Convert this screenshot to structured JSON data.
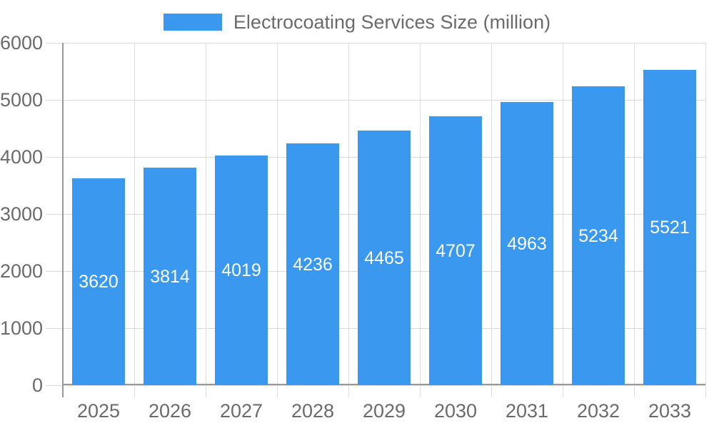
{
  "legend": {
    "label": "Electrocoating Services Size (million)"
  },
  "chart_data": {
    "type": "bar",
    "title": "",
    "series_name": "Electrocoating Services Size (million)",
    "categories": [
      "2025",
      "2026",
      "2027",
      "2028",
      "2029",
      "2030",
      "2031",
      "2032",
      "2033"
    ],
    "values": [
      3620,
      3814,
      4019,
      4236,
      4465,
      4707,
      4963,
      5234,
      5521
    ],
    "xlabel": "",
    "ylabel": "",
    "ylim": [
      0,
      6000
    ],
    "yticks": [
      0,
      1000,
      2000,
      3000,
      4000,
      5000,
      6000
    ],
    "grid": true,
    "legend_position": "top-center",
    "bar_color": "#3A99EE",
    "value_label_color": "#FFFFFF",
    "axis_text_color": "#6B6B6B",
    "grid_color": "#DDDDDD",
    "axis_line_color": "#999999",
    "background_color": "#FFFFFF"
  }
}
